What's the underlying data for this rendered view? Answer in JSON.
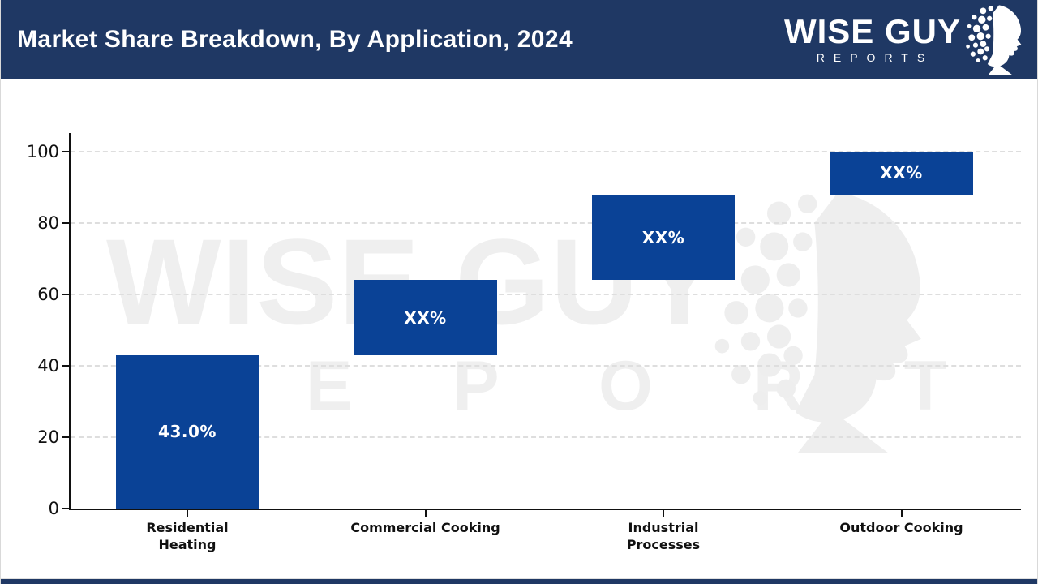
{
  "header": {
    "title": "Market Share Breakdown, By Application, 2024",
    "brand": {
      "line1": "WISE GUY",
      "line2": "REPORTS"
    }
  },
  "watermark": {
    "line1": "WISE GUY",
    "line2": "R E P O R T S"
  },
  "colors": {
    "header_bg": "#1f3864",
    "bar": "#0a4296",
    "grid": "#dedede",
    "watermark": "#efefef",
    "axis": "#111111"
  },
  "chart_data": {
    "type": "bar",
    "subtype": "waterfall",
    "title": "Market Share Breakdown, By Application, 2024",
    "xlabel": "",
    "ylabel": "",
    "ylim": [
      0,
      105
    ],
    "yticks": [
      0,
      20,
      40,
      60,
      80,
      100
    ],
    "grid": "dashed-horizontal",
    "categories": [
      "Residential\nHeating",
      "Commercial Cooking",
      "Industrial\nProcesses",
      "Outdoor Cooking"
    ],
    "bars": [
      {
        "category": "Residential Heating",
        "start": 0,
        "end": 43,
        "label": "43.0%"
      },
      {
        "category": "Commercial Cooking",
        "start": 43,
        "end": 64,
        "label": "XX%"
      },
      {
        "category": "Industrial Processes",
        "start": 64,
        "end": 88,
        "label": "XX%"
      },
      {
        "category": "Outdoor Cooking",
        "start": 88,
        "end": 100,
        "label": "XX%"
      }
    ]
  }
}
